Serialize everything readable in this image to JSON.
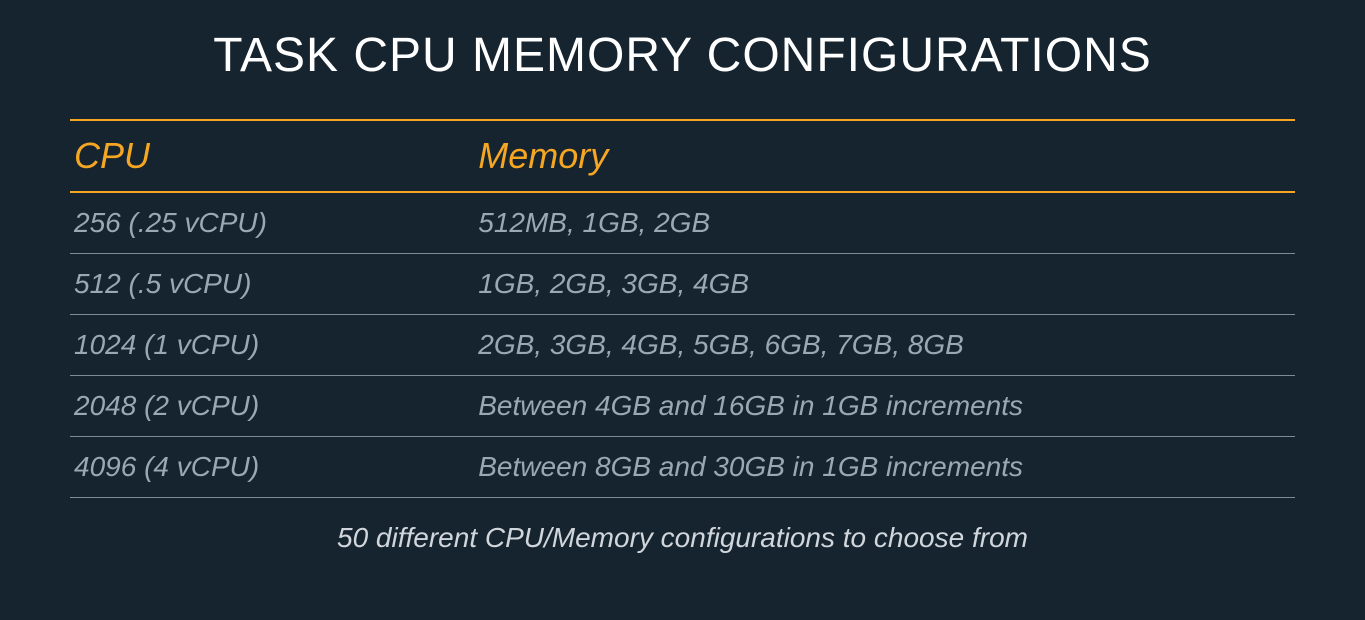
{
  "slide": {
    "title": "TASK CPU MEMORY CONFIGURATIONS",
    "footer": "50 different CPU/Memory configurations to choose from"
  },
  "table": {
    "type": "table",
    "background_color": "#16242f",
    "header_border_color": "#f5a623",
    "row_border_color": "#7d8b96",
    "header_text_color": "#f5a623",
    "cell_text_color": "#9aa8b3",
    "title_text_color": "#ffffff",
    "footer_text_color": "#d0d6db",
    "title_fontsize": 48,
    "header_fontsize": 36,
    "cell_fontsize": 28,
    "footer_fontsize": 28,
    "col_cpu_width_pct": 33,
    "columns": [
      "CPU",
      "Memory"
    ],
    "rows": [
      {
        "cpu": "256 (.25 vCPU)",
        "memory": "512MB, 1GB, 2GB"
      },
      {
        "cpu": "512 (.5 vCPU)",
        "memory": "1GB, 2GB, 3GB, 4GB"
      },
      {
        "cpu": "1024 (1 vCPU)",
        "memory": "2GB, 3GB, 4GB, 5GB, 6GB, 7GB, 8GB"
      },
      {
        "cpu": "2048 (2 vCPU)",
        "memory": "Between 4GB and 16GB in 1GB increments"
      },
      {
        "cpu": "4096 (4 vCPU)",
        "memory": "Between 8GB and 30GB in 1GB increments"
      }
    ]
  }
}
